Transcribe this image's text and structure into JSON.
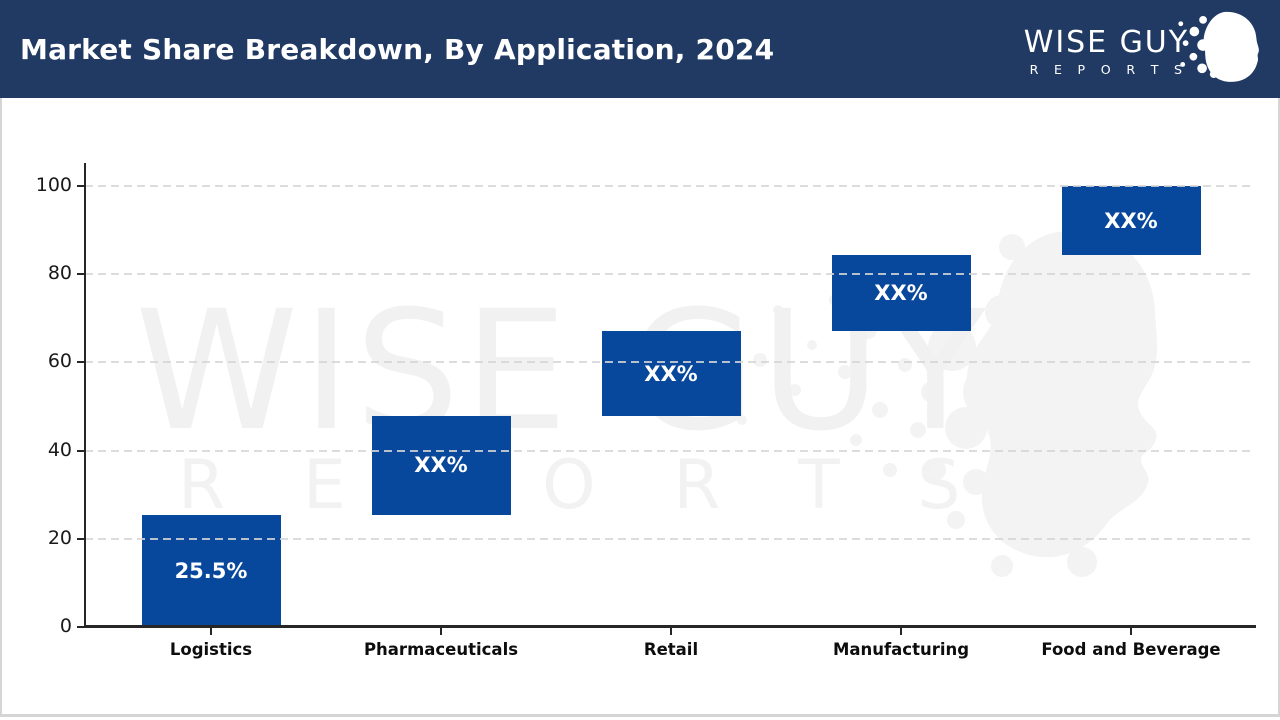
{
  "header": {
    "title": "Market Share Breakdown, By Application, 2024",
    "logo": {
      "primary": "WISE GUY",
      "secondary": "R E P O R T S"
    }
  },
  "watermark": {
    "primary": "WISE GUY",
    "secondary": "R E P O R T S"
  },
  "chart_data": {
    "type": "bar",
    "variant": "stacked-waterfall",
    "title": "Market Share Breakdown, By Application, 2024",
    "categories": [
      "Logistics",
      "Pharmaceuticals",
      "Retail",
      "Manufacturing",
      "Food and Beverage"
    ],
    "bars": [
      {
        "category": "Logistics",
        "start": 0,
        "end": 25.5,
        "label": "25.5%"
      },
      {
        "category": "Pharmaceuticals",
        "start": 25.5,
        "end": 47.8,
        "label": "XX%"
      },
      {
        "category": "Retail",
        "start": 47.8,
        "end": 67.1,
        "label": "XX%"
      },
      {
        "category": "Manufacturing",
        "start": 67.1,
        "end": 84.3,
        "label": "XX%"
      },
      {
        "category": "Food and Beverage",
        "start": 84.3,
        "end": 100,
        "label": "XX%"
      }
    ],
    "yticks": [
      0,
      20,
      40,
      60,
      80,
      100
    ],
    "ylim": [
      0,
      105
    ],
    "xlabel": "",
    "ylabel": "",
    "grid": "dashed-horizontal",
    "legend": "none",
    "colors": {
      "bar": "#08489c",
      "header_bg": "#213a64",
      "axis": "#262626",
      "gridline": "#d9d9d9",
      "bar_label": "#ffffff",
      "tick_label": "#1a1a1a",
      "watermark": "#f2f2f2"
    }
  }
}
